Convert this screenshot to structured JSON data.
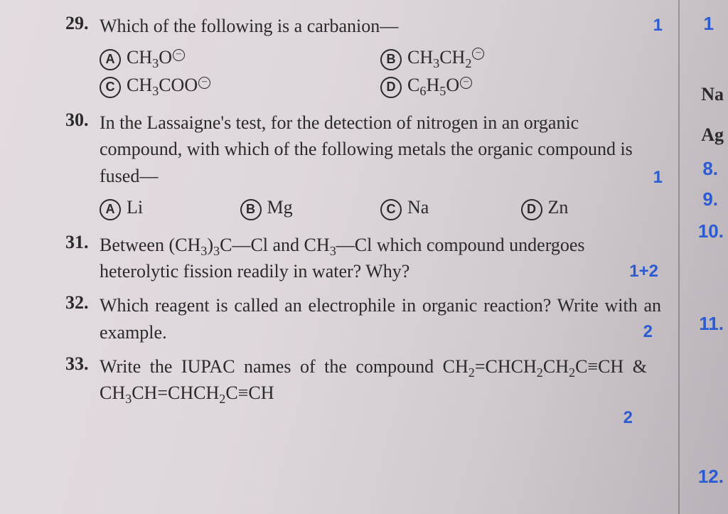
{
  "questions": {
    "q29": {
      "num": "29.",
      "text": "Which of the following is a carbanion—",
      "marks": "1",
      "opts": {
        "A": "CH<sub>3</sub>O<span class='ominus'>–</span>",
        "B": "CH<sub>3</sub>CH<sub>2</sub><span class='ominus' style='vertical-align:12px;'>–</span>",
        "C": "CH<sub>3</sub>COO<span class='ominus'>–</span>",
        "D": "C<sub>6</sub>H<sub>5</sub>O<span class='ominus'>–</span>"
      }
    },
    "q30": {
      "num": "30.",
      "text": "In the Lassaigne's test, for the detection of nitrogen in an organic compound, with which of the following metals the organic compound is fused—",
      "marks": "1",
      "opts": {
        "A": "Li",
        "B": "Mg",
        "C": "Na",
        "D": "Zn"
      }
    },
    "q31": {
      "num": "31.",
      "text_html": "Between (CH<sub>3</sub>)<sub>3</sub>C—Cl and CH<sub>3</sub>—Cl which compound undergoes heterolytic fission readily in water? Why?",
      "marks": "1+2"
    },
    "q32": {
      "num": "32.",
      "text": "Which reagent is called an electrophile in organic reaction? Write with an example.",
      "marks": "2"
    },
    "q33": {
      "num": "33.",
      "text_html": "Write the IUPAC names of the compound CH<sub>2</sub>=CHCH<sub>2</sub>CH<sub>2</sub>C≡CH &amp; CH<sub>3</sub>CH=CHCH<sub>2</sub>C≡CH",
      "marks": "2"
    }
  },
  "edge_labels": {
    "e1": "1",
    "na": "Na",
    "ag": "Ag",
    "e8": "8.",
    "e9": "9.",
    "e10": "10.",
    "e11": "11.",
    "e12": "12."
  },
  "opt_letters": {
    "A": "A",
    "B": "B",
    "C": "C",
    "D": "D"
  },
  "colors": {
    "text": "#2a2a2a",
    "marks": "#2a5bd0",
    "bg_light": "#e2dbe0",
    "bg_dark": "#b8b2b8"
  }
}
